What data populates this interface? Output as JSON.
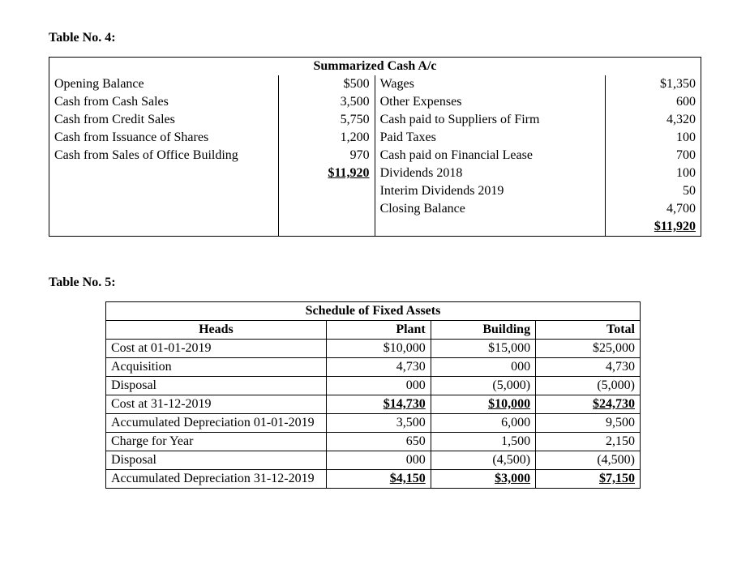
{
  "table4": {
    "caption": "Table No. 4:",
    "title": "Summarized Cash A/c",
    "left": [
      {
        "label": "Opening Balance",
        "value": "$500"
      },
      {
        "label": "Cash from Cash Sales",
        "value": "3,500"
      },
      {
        "label": "Cash from Credit Sales",
        "value": "5,750"
      },
      {
        "label": "Cash from Issuance of Shares",
        "value": "1,200"
      },
      {
        "label": "Cash from Sales of Office Building",
        "value": "970"
      }
    ],
    "left_total": "$11,920",
    "right": [
      {
        "label": "Wages",
        "value": "$1,350"
      },
      {
        "label": "Other Expenses",
        "value": "600"
      },
      {
        "label": "Cash paid to Suppliers of Firm",
        "value": "4,320"
      },
      {
        "label": "Paid Taxes",
        "value": "100"
      },
      {
        "label": "Cash paid on Financial Lease",
        "value": "700"
      },
      {
        "label": "Dividends 2018",
        "value": "100"
      },
      {
        "label": "Interim Dividends 2019",
        "value": "50"
      },
      {
        "label": "Closing Balance",
        "value": "4,700"
      }
    ],
    "right_total": "$11,920"
  },
  "table5": {
    "caption": "Table No. 5:",
    "title": "Schedule of Fixed Assets",
    "columns": [
      "Heads",
      "Plant",
      "Building",
      "Total"
    ],
    "rows": [
      {
        "head": "Cost at 01-01-2019",
        "plant": "$10,000",
        "building": "$15,000",
        "total": "$25,000",
        "bold": false
      },
      {
        "head": "Acquisition",
        "plant": "4,730",
        "building": "000",
        "total": "4,730",
        "bold": false
      },
      {
        "head": "Disposal",
        "plant": "000",
        "building": "(5,000)",
        "total": "(5,000)",
        "bold": false
      },
      {
        "head": "Cost at 31-12-2019",
        "plant": "$14,730",
        "building": "$10,000",
        "total": "$24,730",
        "bold": true
      },
      {
        "head": "Accumulated Depreciation 01-01-2019",
        "plant": "3,500",
        "building": "6,000",
        "total": "9,500",
        "bold": false
      },
      {
        "head": "Charge for Year",
        "plant": "650",
        "building": "1,500",
        "total": "2,150",
        "bold": false
      },
      {
        "head": "Disposal",
        "plant": "000",
        "building": "(4,500)",
        "total": "(4,500)",
        "bold": false
      },
      {
        "head": "Accumulated Depreciation 31-12-2019",
        "plant": "$4,150",
        "building": "$3,000",
        "total": "$7,150",
        "bold": true
      }
    ]
  }
}
